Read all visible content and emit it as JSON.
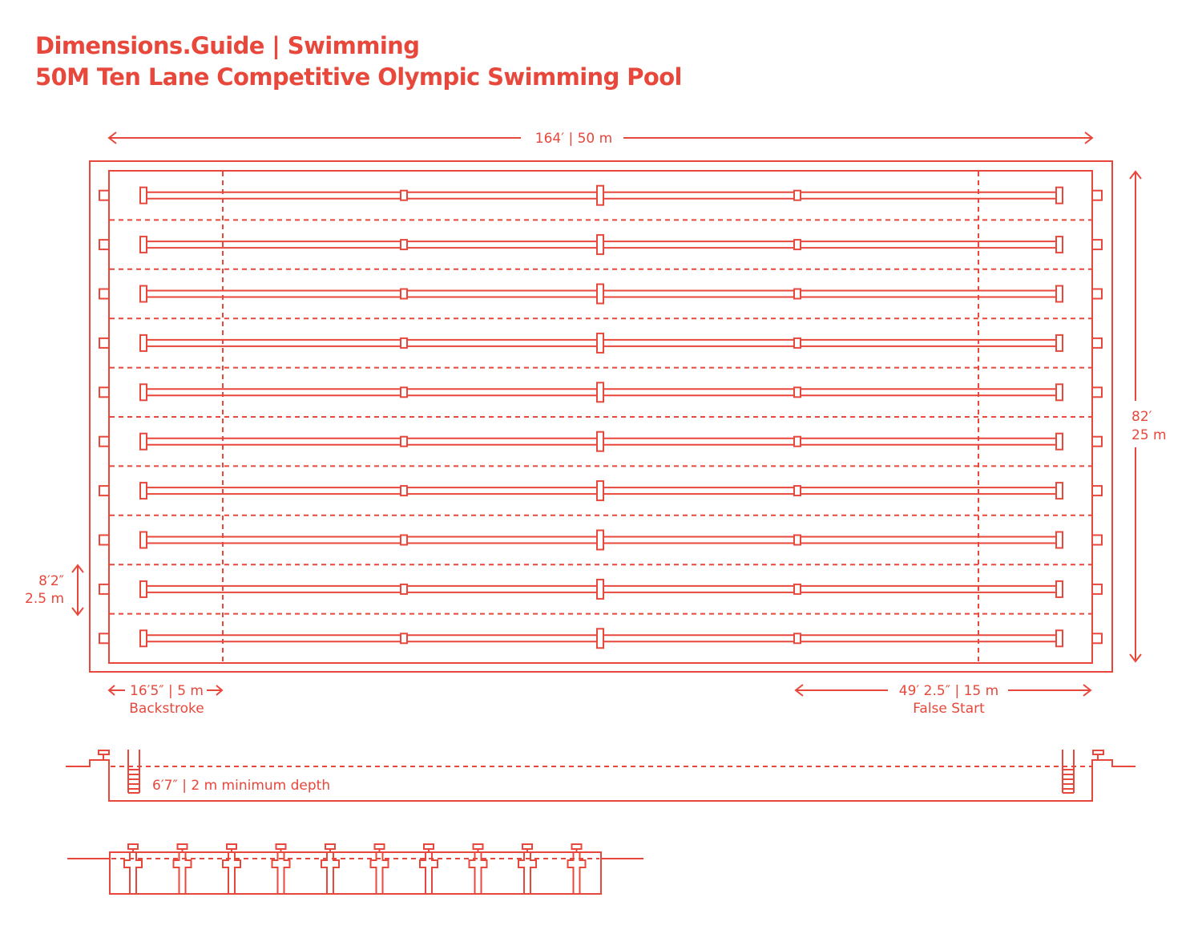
{
  "header": {
    "brand": "Dimensions.Guide | Swimming",
    "title": "50M Ten Lane Competitive Olympic Swimming Pool"
  },
  "colors": {
    "accent": "#E8473B",
    "background": "#FFFFFF"
  },
  "plan_view": {
    "lane_count": 10,
    "length_label": "164′ | 50 m",
    "width_label_ft": "82′",
    "width_label_m": "25 m",
    "lane_width_ft": "8′2″",
    "lane_width_m": "2.5 m",
    "backstroke_distance": "16′5″ | 5 m",
    "backstroke_label": "Backstroke",
    "false_start_distance": "49′ 2.5″ | 15 m",
    "false_start_label": "False Start"
  },
  "section_view": {
    "depth_label": "6′7″ | 2 m minimum depth"
  },
  "end_view": {
    "starting_blocks": 10
  }
}
